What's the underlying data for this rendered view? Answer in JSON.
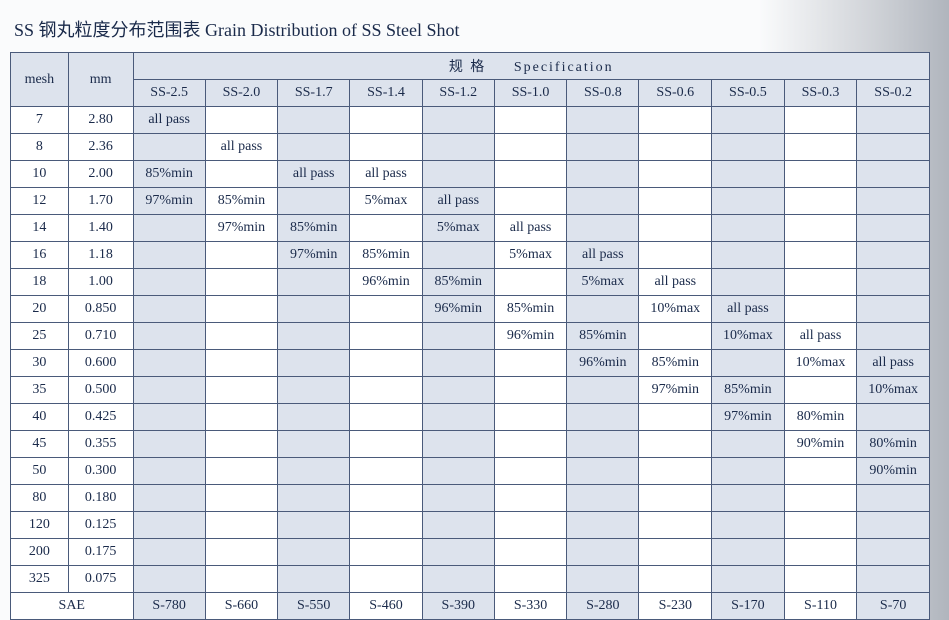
{
  "title": "SS  钢丸粒度分布范围表   Grain Distribution of SS Steel Shot",
  "headers": {
    "mesh": "mesh",
    "mm": "mm",
    "spec_cn": "规    格",
    "spec_en": "Specification",
    "ss_cols": [
      "SS-2.5",
      "SS-2.0",
      "SS-1.7",
      "SS-1.4",
      "SS-1.2",
      "SS-1.0",
      "SS-0.8",
      "SS-0.6",
      "SS-0.5",
      "SS-0.3",
      "SS-0.2"
    ]
  },
  "rows": [
    {
      "mesh": "7",
      "mm": "2.80",
      "cells": [
        "all pass",
        "",
        "",
        "",
        "",
        "",
        "",
        "",
        "",
        "",
        ""
      ]
    },
    {
      "mesh": "8",
      "mm": "2.36",
      "cells": [
        "",
        "all pass",
        "",
        "",
        "",
        "",
        "",
        "",
        "",
        "",
        ""
      ]
    },
    {
      "mesh": "10",
      "mm": "2.00",
      "cells": [
        "85%min",
        "",
        "all pass",
        "all pass",
        "",
        "",
        "",
        "",
        "",
        "",
        ""
      ]
    },
    {
      "mesh": "12",
      "mm": "1.70",
      "cells": [
        "97%min",
        "85%min",
        "",
        "5%max",
        "all pass",
        "",
        "",
        "",
        "",
        "",
        ""
      ]
    },
    {
      "mesh": "14",
      "mm": "1.40",
      "cells": [
        "",
        "97%min",
        "85%min",
        "",
        "5%max",
        "all pass",
        "",
        "",
        "",
        "",
        ""
      ]
    },
    {
      "mesh": "16",
      "mm": "1.18",
      "cells": [
        "",
        "",
        "97%min",
        "85%min",
        "",
        "5%max",
        "all pass",
        "",
        "",
        "",
        ""
      ]
    },
    {
      "mesh": "18",
      "mm": "1.00",
      "cells": [
        "",
        "",
        "",
        "96%min",
        "85%min",
        "",
        "5%max",
        "all pass",
        "",
        "",
        ""
      ]
    },
    {
      "mesh": "20",
      "mm": "0.850",
      "cells": [
        "",
        "",
        "",
        "",
        "96%min",
        "85%min",
        "",
        "10%max",
        "all pass",
        "",
        ""
      ]
    },
    {
      "mesh": "25",
      "mm": "0.710",
      "cells": [
        "",
        "",
        "",
        "",
        "",
        "96%min",
        "85%min",
        "",
        "10%max",
        "all pass",
        ""
      ]
    },
    {
      "mesh": "30",
      "mm": "0.600",
      "cells": [
        "",
        "",
        "",
        "",
        "",
        "",
        "96%min",
        "85%min",
        "",
        "10%max",
        "all pass"
      ]
    },
    {
      "mesh": "35",
      "mm": "0.500",
      "cells": [
        "",
        "",
        "",
        "",
        "",
        "",
        "",
        "97%min",
        "85%min",
        "",
        "10%max"
      ]
    },
    {
      "mesh": "40",
      "mm": "0.425",
      "cells": [
        "",
        "",
        "",
        "",
        "",
        "",
        "",
        "",
        "97%min",
        "80%min",
        ""
      ]
    },
    {
      "mesh": "45",
      "mm": "0.355",
      "cells": [
        "",
        "",
        "",
        "",
        "",
        "",
        "",
        "",
        "",
        "90%min",
        "80%min"
      ]
    },
    {
      "mesh": "50",
      "mm": "0.300",
      "cells": [
        "",
        "",
        "",
        "",
        "",
        "",
        "",
        "",
        "",
        "",
        "90%min"
      ]
    },
    {
      "mesh": "80",
      "mm": "0.180",
      "cells": [
        "",
        "",
        "",
        "",
        "",
        "",
        "",
        "",
        "",
        "",
        ""
      ]
    },
    {
      "mesh": "120",
      "mm": "0.125",
      "cells": [
        "",
        "",
        "",
        "",
        "",
        "",
        "",
        "",
        "",
        "",
        ""
      ]
    },
    {
      "mesh": "200",
      "mm": "0.175",
      "cells": [
        "",
        "",
        "",
        "",
        "",
        "",
        "",
        "",
        "",
        "",
        ""
      ]
    },
    {
      "mesh": "325",
      "mm": "0.075",
      "cells": [
        "",
        "",
        "",
        "",
        "",
        "",
        "",
        "",
        "",
        "",
        ""
      ]
    }
  ],
  "footer": {
    "label": "SAE",
    "cells": [
      "S-780",
      "S-660",
      "S-550",
      "S-460",
      "S-390",
      "S-330",
      "S-280",
      "S-230",
      "S-170",
      "S-110",
      "S-70"
    ]
  },
  "style": {
    "header_bg": "#dde3ed",
    "alt_bg": "#dde3ed",
    "border_color": "#4a5a7a",
    "text_color": "#1a2a4a",
    "title_fontsize": 18,
    "cell_fontsize": 14
  }
}
